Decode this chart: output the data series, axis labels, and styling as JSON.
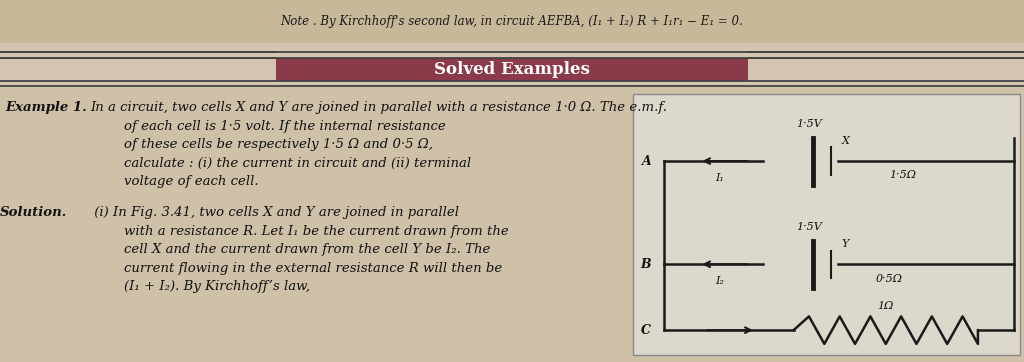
{
  "bg_color": "#d4c5b0",
  "header_text": "Note . By Kirchhoff's second law, in circuit AEFBA, (I₁ + I₂) R + I₁r₁ − E₁ = 0.",
  "header_text_color": "#1a1a1a",
  "banner_text": "Solved Examples",
  "banner_bg": "#8b3a4a",
  "banner_text_color": "#ffffff",
  "example_label": "Example 1.",
  "solution_label": "Solution.",
  "circuit": {
    "cell_X_emf": "1·5V",
    "cell_X_label": "X",
    "cell_X_resistance": "1·5Ω",
    "cell_X_current": "I₁",
    "cell_Y_emf": "1·5V",
    "cell_Y_label": "Y",
    "cell_Y_resistance": "0·5Ω",
    "cell_Y_current": "I₂",
    "resistor_R": "1Ω",
    "line_color": "#1a1a1a"
  }
}
